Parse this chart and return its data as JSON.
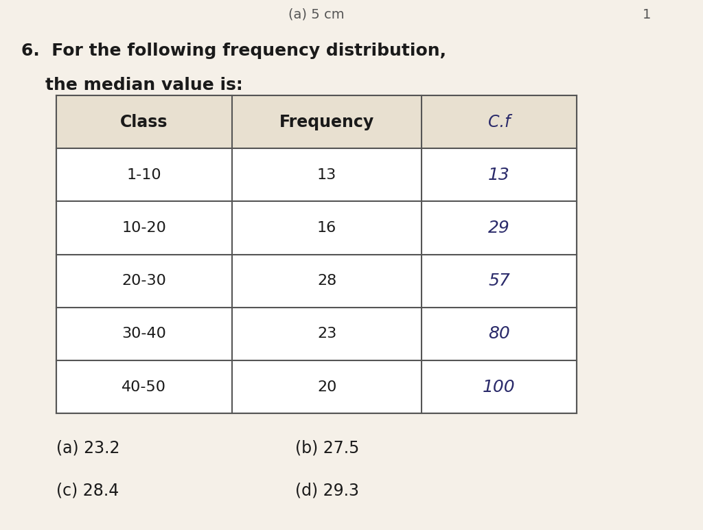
{
  "question_number": "6.",
  "question_text": "For the following frequency distribution,\nthe median value is:",
  "table_headers": [
    "Class",
    "Frequency",
    "C.f"
  ],
  "table_rows": [
    [
      "1-10",
      "13",
      "13"
    ],
    [
      "10-20",
      "16",
      "29"
    ],
    [
      "20-30",
      "28",
      "57"
    ],
    [
      "30-40",
      "23",
      "80"
    ],
    [
      "40-50",
      "20",
      "100"
    ]
  ],
  "options": [
    [
      "(a) 23.2",
      "(b) 27.5"
    ],
    [
      "(c) 28.4",
      "(d) 29.3"
    ]
  ],
  "bg_color": "#f5f0e8",
  "table_bg": "#ffffff",
  "header_bg": "#e8e0d0",
  "text_color": "#1a1a1a",
  "handwritten_color": "#2a2a6a",
  "font_size_question": 18,
  "font_size_table": 16,
  "font_size_options": 17
}
